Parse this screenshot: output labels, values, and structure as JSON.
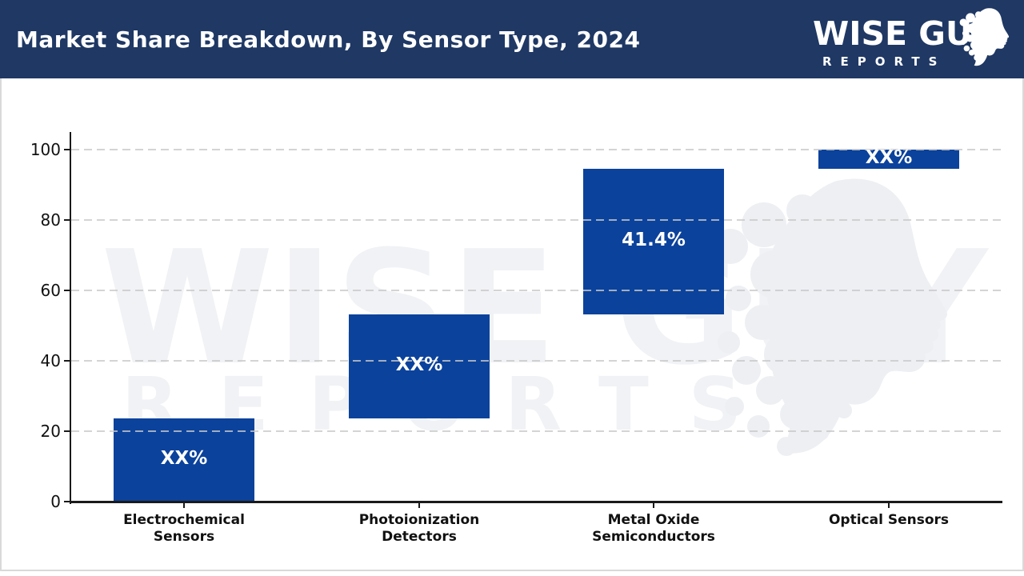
{
  "header": {
    "title": "Market Share Breakdown, By Sensor Type, 2024",
    "bg_color": "#1f3864",
    "logo": {
      "wordmark": "WISE GUY",
      "reports_text": "REPORTS"
    }
  },
  "watermark": {
    "wordmark": "WISE GUY",
    "reports_text": "REPORTS"
  },
  "chart_data": {
    "type": "bar",
    "subtype": "waterfall",
    "title": "Market Share Breakdown, By Sensor Type, 2024",
    "categories": [
      "Electrochemical Sensors",
      "Photoionization Detectors",
      "Metal Oxide Semiconductors",
      "Optical Sensors"
    ],
    "category_label_lines": [
      [
        "Electrochemical",
        "Sensors"
      ],
      [
        "Photoionization",
        "Detectors"
      ],
      [
        "Metal Oxide",
        "Semiconductors"
      ],
      [
        "Optical Sensors"
      ]
    ],
    "segments": [
      {
        "category": "Electrochemical Sensors",
        "start": 0,
        "end": 23.6,
        "label": "XX%"
      },
      {
        "category": "Photoionization Detectors",
        "start": 23.6,
        "end": 53.2,
        "label": "XX%"
      },
      {
        "category": "Metal Oxide Semiconductors",
        "start": 53.2,
        "end": 94.6,
        "label": "41.4%"
      },
      {
        "category": "Optical Sensors",
        "start": 94.6,
        "end": 100,
        "label": "XX%"
      }
    ],
    "ylabel": "",
    "xlabel": "",
    "yticks": [
      0,
      20,
      40,
      60,
      80,
      100
    ],
    "ylim": [
      0,
      105
    ],
    "bar_color": "#0b429c",
    "grid": {
      "axis": "y",
      "style": "dashed",
      "color": "#c9c9c9"
    },
    "legend": null
  }
}
